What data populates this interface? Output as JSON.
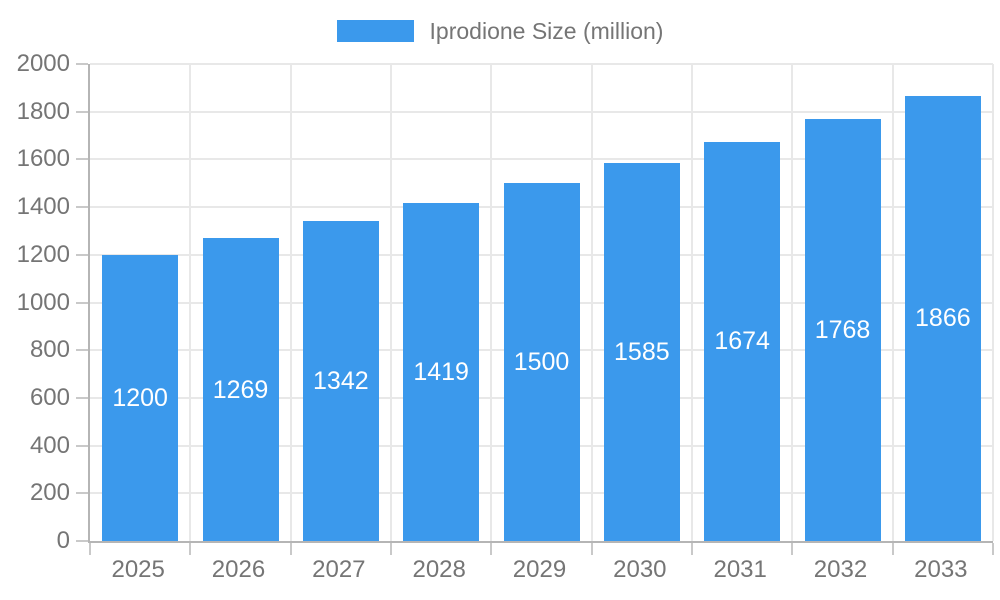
{
  "chart_data": {
    "type": "bar",
    "title": "",
    "legend": {
      "position": "top",
      "label": "Iprodione Size (million)"
    },
    "categories": [
      "2025",
      "2026",
      "2027",
      "2028",
      "2029",
      "2030",
      "2031",
      "2032",
      "2033"
    ],
    "series": [
      {
        "name": "Iprodione Size (million)",
        "values": [
          1200,
          1269,
          1342,
          1419,
          1500,
          1585,
          1674,
          1768,
          1866
        ]
      }
    ],
    "value_labels": {
      "visible": true,
      "placement": "inside-center",
      "color": "#ffffff"
    },
    "xlabel": "",
    "ylabel": "",
    "ylim": [
      0,
      2000
    ],
    "y_ticks": [
      0,
      200,
      400,
      600,
      800,
      1000,
      1200,
      1400,
      1600,
      1800,
      2000
    ],
    "grid": true,
    "colors": {
      "bar": "#3b99ec",
      "axis_text": "#757575",
      "axis_line": "#b5b5b5",
      "grid_line": "#e8e8e8",
      "tick": "#c9c9c9",
      "background": "#ffffff"
    }
  }
}
